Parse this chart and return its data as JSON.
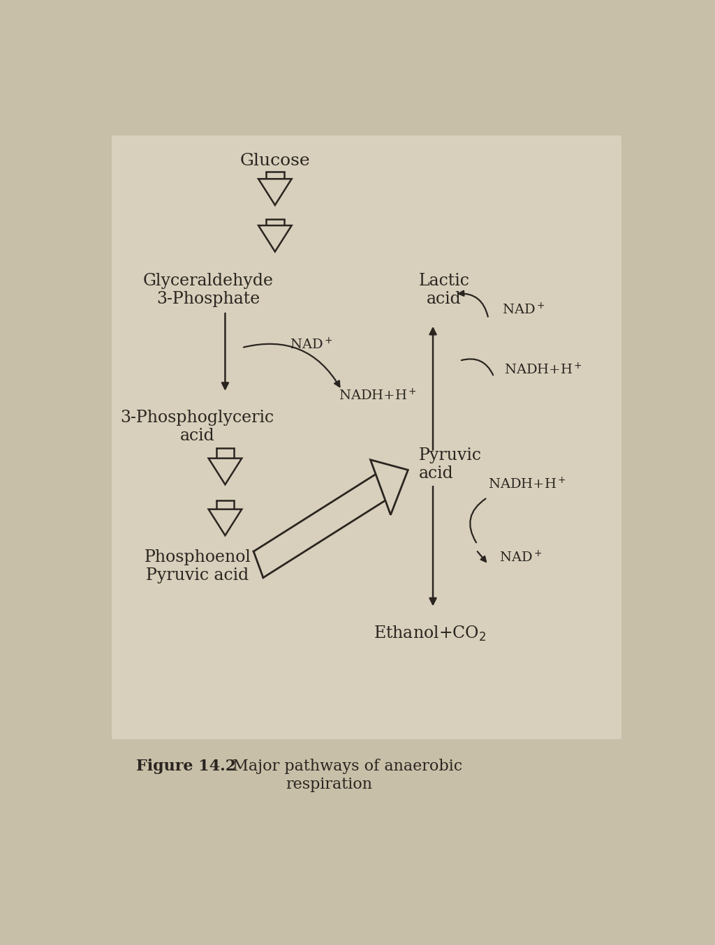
{
  "bg_color_outer": "#c8bfa8",
  "bg_color_inner": "#d8d0bc",
  "text_color": "#2a2520",
  "arrow_color": "#2a2520",
  "font_size_large": 17,
  "font_size_small": 14,
  "font_size_caption": 16,
  "labels": {
    "glucose": "Glucose",
    "glyc3p_1": "Glyceraldehyde",
    "glyc3p_2": "3-Phosphate",
    "lactic_1": "Lactic",
    "lactic_2": "acid",
    "nad_top": "NAD⁺",
    "nadh_top": "NADH+H⁺",
    "phospho3g_1": "3-Phosphoglyceric",
    "phospho3g_2": "acid",
    "pyruvic_1": "Pyruvic",
    "pyruvic_2": "acid",
    "nadh_lactic": "NADH+H⁺",
    "nad_lactic": "NAD⁺",
    "nadh_ethanol": "NADH+H⁺",
    "nad_ethanol": "NAD⁺",
    "phosphoenol_1": "Phosphoenol",
    "phosphoenol_2": "Pyruvic acid",
    "ethanol": "Ethanol+CO₂",
    "caption_bold": "Figure 14.2",
    "caption_rest": " Major pathways of anaerobic",
    "caption_line2": "respiration"
  }
}
